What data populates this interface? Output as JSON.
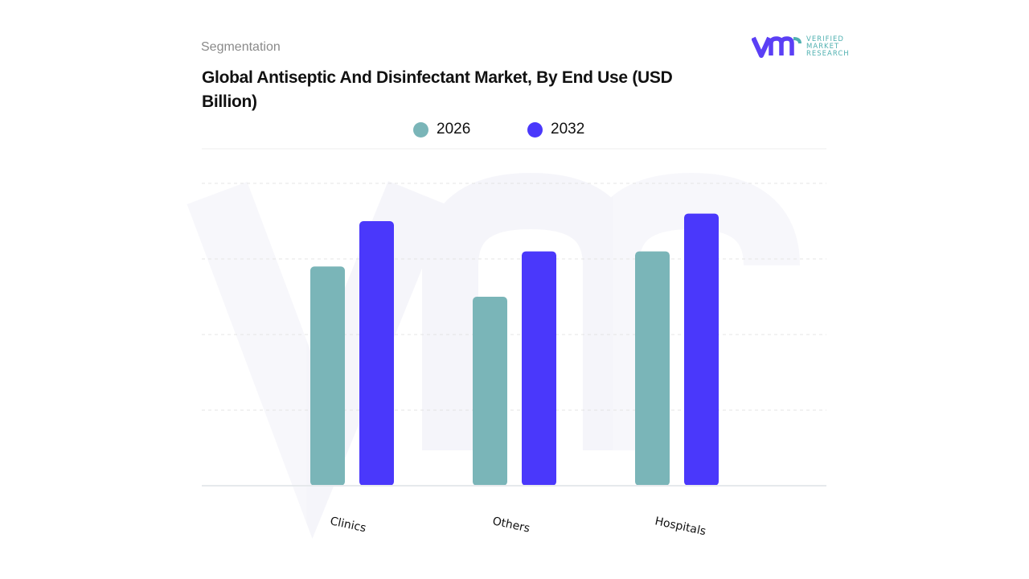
{
  "header": {
    "section_label": "Segmentation",
    "logo_text": [
      "VERIFIED",
      "MARKET",
      "RESEARCH"
    ]
  },
  "chart_data": {
    "type": "bar",
    "title": "Global Antiseptic And Disinfectant Market, By End Use (USD Billion)",
    "categories": [
      "Clinics",
      "Others",
      "Hospitals"
    ],
    "series": [
      {
        "name": "2026",
        "color": "#7ab5b8",
        "values": [
          2.9,
          2.5,
          3.1
        ]
      },
      {
        "name": "2032",
        "color": "#4a38fb",
        "values": [
          3.5,
          3.1,
          3.6
        ]
      }
    ],
    "xlabel": "",
    "ylabel": "",
    "ylim": [
      0,
      4
    ],
    "y_tick_labels_shown": false,
    "grid": true,
    "legend_placement": "top-center"
  }
}
